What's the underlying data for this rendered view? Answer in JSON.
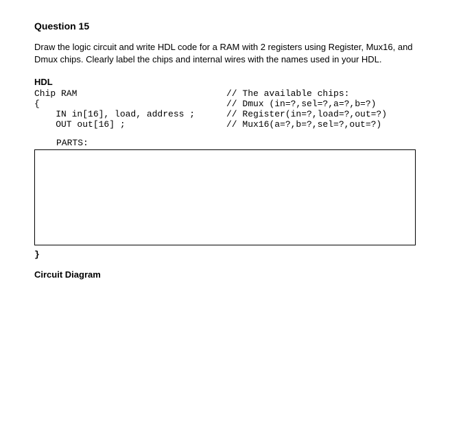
{
  "question": {
    "title": "Question 15",
    "instructions": "Draw the logic circuit and write HDL code for a RAM with 2 registers using Register, Mux16, and Dmux chips.  Clearly label the chips and internal wires with the names used in your HDL."
  },
  "hdl": {
    "header": "HDL",
    "line1_left": "Chip RAM",
    "line1_right": "// The available chips:",
    "line2_left": "{",
    "line2_right": "// Dmux (in=?,sel=?,a=?,b=?)",
    "line3_left": "    IN in[16], load, address ;",
    "line3_right": "// Register(in=?,load=?,out=?)",
    "line4_left": "    OUT out[16] ;",
    "line4_right": "// Mux16(a=?,b=?,sel=?,out=?)",
    "parts_label": "PARTS:",
    "close_brace": "}"
  },
  "diagram": {
    "title": "Circuit Diagram"
  },
  "styling": {
    "background_color": "#ffffff",
    "text_color": "#000000",
    "border_color": "#000000",
    "title_fontsize": 14,
    "body_fontsize": 13,
    "code_font": "Courier New",
    "body_font": "Arial",
    "answer_box_height": 140,
    "code_left_width": 280
  }
}
